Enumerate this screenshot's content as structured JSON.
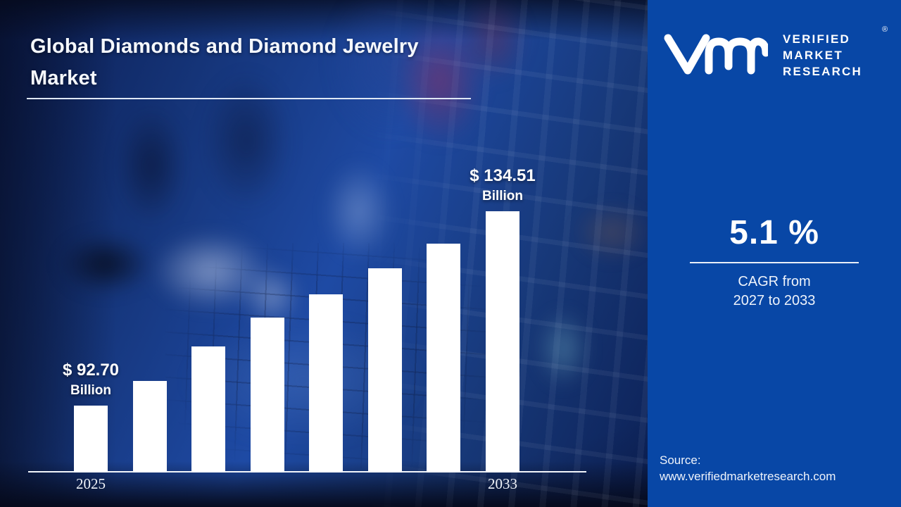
{
  "title": "Global Diamonds and Diamond Jewelry Market",
  "logo": {
    "monogram": "vmr-monogram",
    "brand_lines": [
      "VERIFIED",
      "MARKET",
      "RESEARCH"
    ],
    "registered_mark": "®"
  },
  "cagr": {
    "value": "5.1 %",
    "caption_line1": "CAGR from",
    "caption_line2": "2027 to 2033"
  },
  "source": {
    "label": "Source:",
    "url": "www.verifiedmarketresearch.com"
  },
  "colors": {
    "sidebar_blue": "#0847a6",
    "bar_white": "#ffffff",
    "text_white": "#ffffff"
  },
  "chart_data": {
    "type": "bar",
    "title": "Global Diamonds and Diamond Jewelry Market",
    "unit": "USD Billion",
    "categories": [
      "2025",
      "",
      "",
      "",
      "",
      "",
      "",
      "2033"
    ],
    "values": [
      92.7,
      98.0,
      105.4,
      111.6,
      116.6,
      122.2,
      127.5,
      134.51
    ],
    "value_labels": [
      {
        "index": 0,
        "line1": "$ 92.70",
        "line2": "Billion"
      },
      {
        "index": 7,
        "line1": "$ 134.51",
        "line2": "Billion"
      }
    ],
    "ylim": [
      78.3,
      145
    ],
    "grid": false,
    "legend": "none",
    "value_axis_hidden": true,
    "bar_color": "#ffffff"
  }
}
